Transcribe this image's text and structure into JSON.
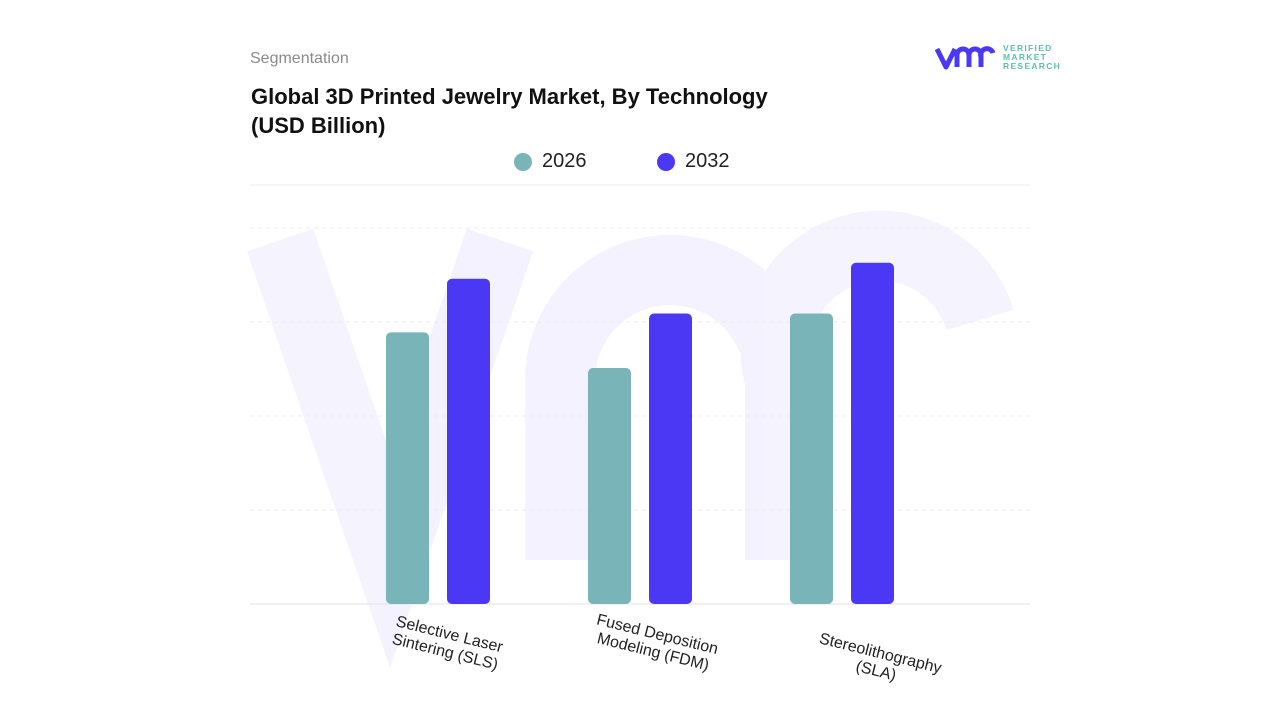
{
  "header": {
    "segment_label": "Segmentation",
    "title_line1": "Global 3D Printed Jewelry Market, By Technology",
    "title_line2": "(USD Billion)"
  },
  "logo": {
    "line1": "VERIFIED",
    "line2": "MARKET",
    "line3": "RESEARCH",
    "mark": "vmr"
  },
  "colors": {
    "s2026": "#78b4b8",
    "s2032": "#4a38f5",
    "grid": "#e6e6e6"
  },
  "chart_data": {
    "type": "bar",
    "title": "Global 3D Printed Jewelry Market, By Technology (USD Billion)",
    "categories": [
      "Selective Laser Sintering (SLS)",
      "Fused Deposition Modeling (FDM)",
      "Stereolithography (SLA)"
    ],
    "category_lines": [
      [
        "Selective Laser",
        "Sintering (SLS)"
      ],
      [
        "Fused Deposition",
        "Modeling (FDM)"
      ],
      [
        "Stereolithography (SLA)"
      ]
    ],
    "series": [
      {
        "name": "2026",
        "values": [
          2.89,
          2.51,
          3.09
        ]
      },
      {
        "name": "2032",
        "values": [
          3.46,
          3.09,
          3.63
        ]
      }
    ],
    "ylim": [
      0,
      4
    ],
    "grid": true,
    "y_tick_labels_shown": false,
    "legend": "top-center",
    "xlabel": "",
    "ylabel": ""
  }
}
